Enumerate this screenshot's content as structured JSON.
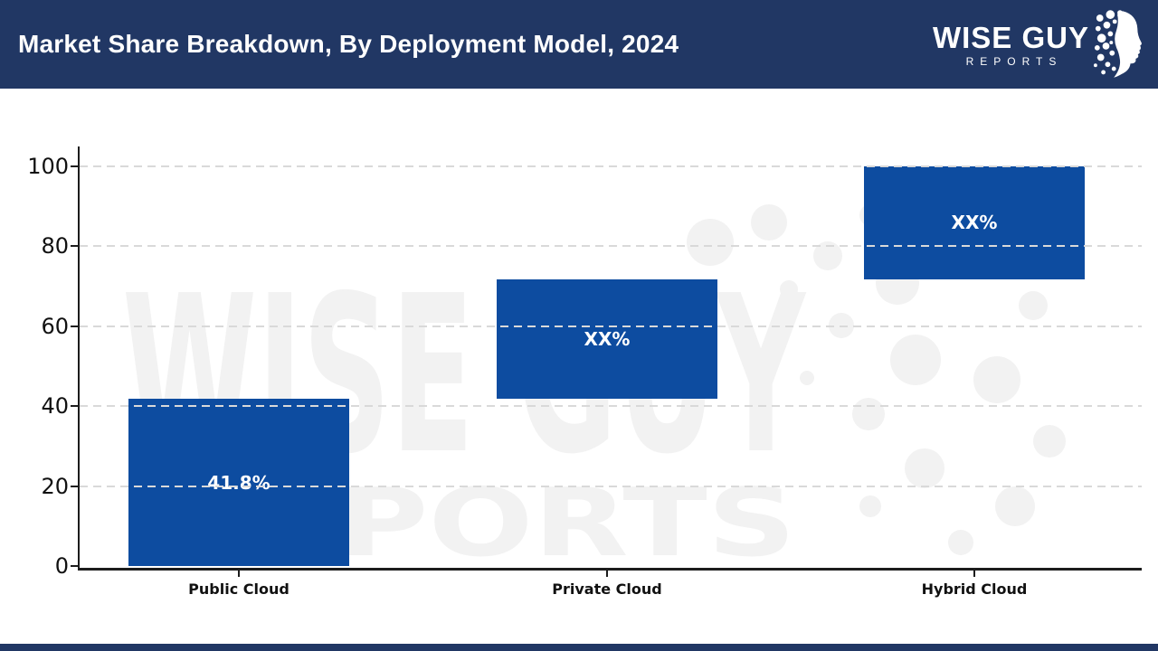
{
  "header": {
    "title": "Market Share Breakdown, By Deployment Model, 2024",
    "logo": {
      "line1": "WISE GUY",
      "line2": "REPORTS"
    }
  },
  "watermark": {
    "line1": "WISE GUY",
    "line2": "REPORTS"
  },
  "colors": {
    "header_bg": "#213764",
    "footer_bg": "#213764",
    "bar_fill": "#0d4ca0",
    "bar_label": "#ffffff",
    "grid_line": "#d9d9d9",
    "axis_line": "#1c1c1c",
    "tick_label": "#111111",
    "watermark": "#f2f2f2"
  },
  "chart_data": {
    "type": "bar",
    "subtype": "waterfall-share-breakdown",
    "title": "Market Share Breakdown, By Deployment Model, 2024",
    "categories": [
      "Public Cloud",
      "Private Cloud",
      "Hybrid Cloud"
    ],
    "bars": [
      {
        "category": "Public Cloud",
        "label": "41.8%",
        "start": 0,
        "end": 41.8
      },
      {
        "category": "Private Cloud",
        "label": "XX%",
        "start": 41.8,
        "end": 71.8
      },
      {
        "category": "Hybrid Cloud",
        "label": "XX%",
        "start": 71.8,
        "end": 100
      }
    ],
    "yticks": [
      0,
      20,
      40,
      60,
      80,
      100
    ],
    "ylim": [
      0,
      105
    ],
    "xlabel": "",
    "ylabel": "",
    "grid": "horizontal-dashed-over-bars",
    "legend": "none",
    "bar_color": "#0d4ca0"
  }
}
